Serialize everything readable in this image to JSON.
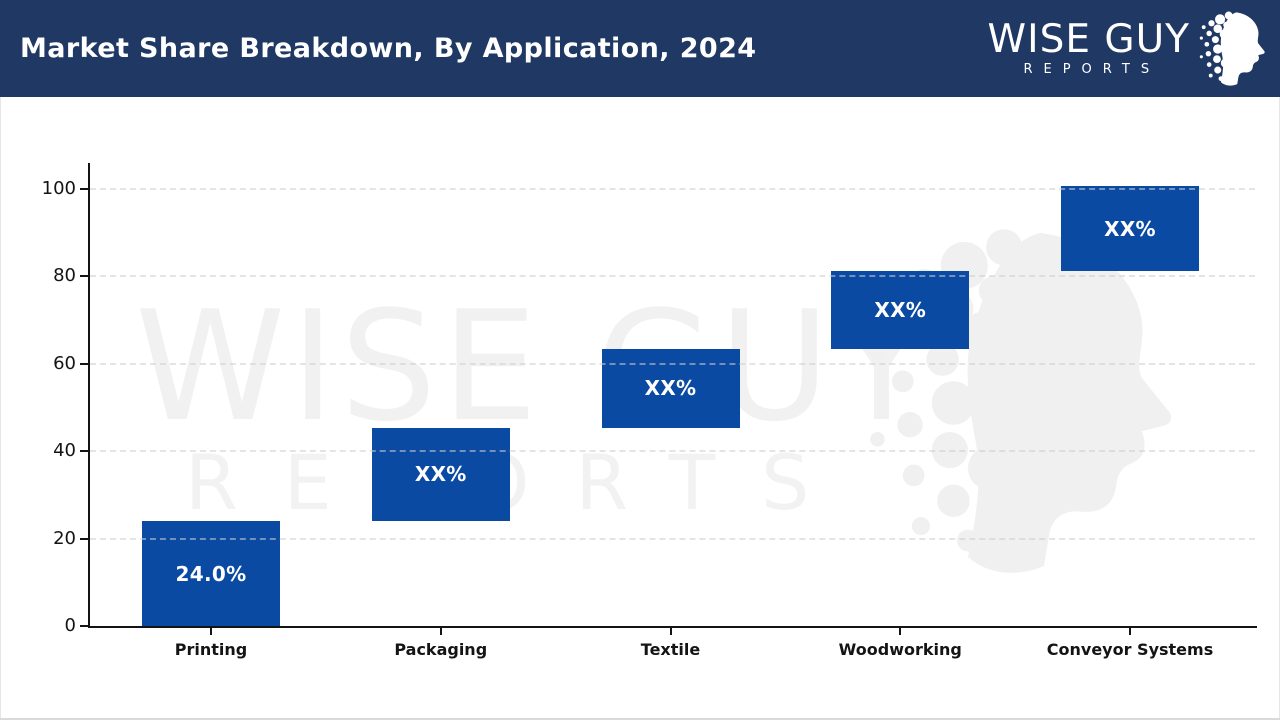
{
  "header": {
    "title": "Market Share Breakdown, By Application, 2024",
    "logo": {
      "line1": "WISE GUY",
      "line2": "REPORTS"
    }
  },
  "watermark": {
    "line1": "WISE GUY",
    "line2": "REPORTS"
  },
  "colors": {
    "header_bg": "#1f3864",
    "title_text": "#ffffff",
    "bar": "#0b4aa2",
    "bar_label": "#ffffff",
    "axis": "#141414",
    "grid": "#dcdcdc",
    "watermark": "#f0f0f0"
  },
  "chart_data": {
    "type": "bar",
    "variant": "waterfall",
    "title": "Market Share Breakdown, By Application, 2024",
    "xlabel": "",
    "ylabel": "",
    "ylim": [
      0,
      105
    ],
    "yticks": [
      0,
      20,
      40,
      60,
      80,
      100
    ],
    "grid": "horizontal-dashed",
    "legend": null,
    "categories": [
      "Printing",
      "Packaging",
      "Textile",
      "Woodworking",
      "Conveyor Systems"
    ],
    "segments": [
      {
        "category": "Printing",
        "start": 0,
        "end": 24,
        "label": "24.0%"
      },
      {
        "category": "Packaging",
        "start": 24,
        "end": 45.3,
        "label": "XX%"
      },
      {
        "category": "Textile",
        "start": 45.3,
        "end": 63.4,
        "label": "XX%"
      },
      {
        "category": "Woodworking",
        "start": 63.4,
        "end": 81.2,
        "label": "XX%"
      },
      {
        "category": "Conveyor Systems",
        "start": 81.2,
        "end": 100.5,
        "label": "XX%"
      }
    ]
  }
}
